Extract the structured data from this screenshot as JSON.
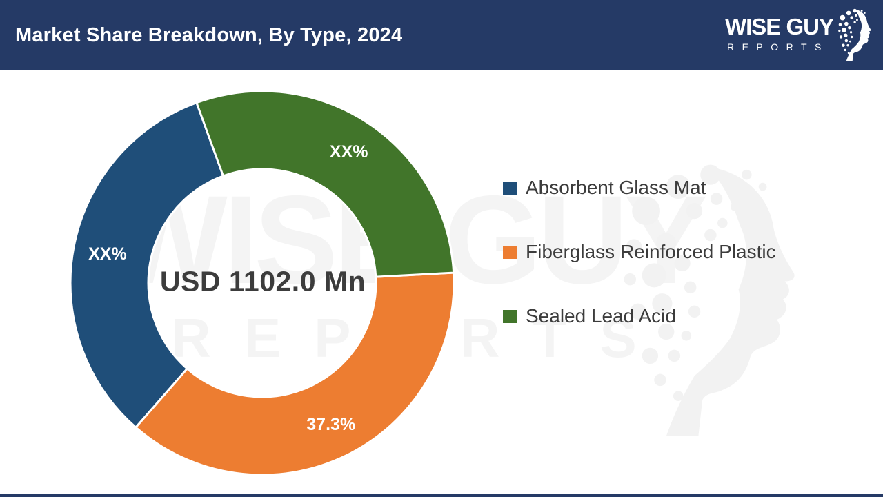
{
  "header": {
    "title": "Market Share Breakdown, By Type, 2024",
    "logo": {
      "line1": "WISE GUY",
      "line2": "REPORTS"
    }
  },
  "watermark": {
    "line1": "WISE GUY",
    "line2": "REPORTS"
  },
  "chart_data": {
    "type": "pie",
    "donut": true,
    "title": "Market Share Breakdown, By Type, 2024",
    "center_label": "USD 1102.0 Mn",
    "rotation_deg": -20,
    "winding": "ccw",
    "legend_position": "right",
    "slices": [
      {
        "name": "Absorbent Glass Mat",
        "color": "#1F4E79",
        "value_pct": 33.0,
        "label": "XX%"
      },
      {
        "name": "Fiberglass Reinforced Plastic",
        "color": "#ED7D31",
        "value_pct": 37.3,
        "label": "37.3%"
      },
      {
        "name": "Sealed Lead Acid",
        "color": "#41752A",
        "value_pct": 29.7,
        "label": "XX%"
      }
    ]
  },
  "colors": {
    "header_bg": "#253A66",
    "text_dark": "#3C3C3C",
    "watermark": "#F4F4F4",
    "separator": "#FFFFFF"
  }
}
